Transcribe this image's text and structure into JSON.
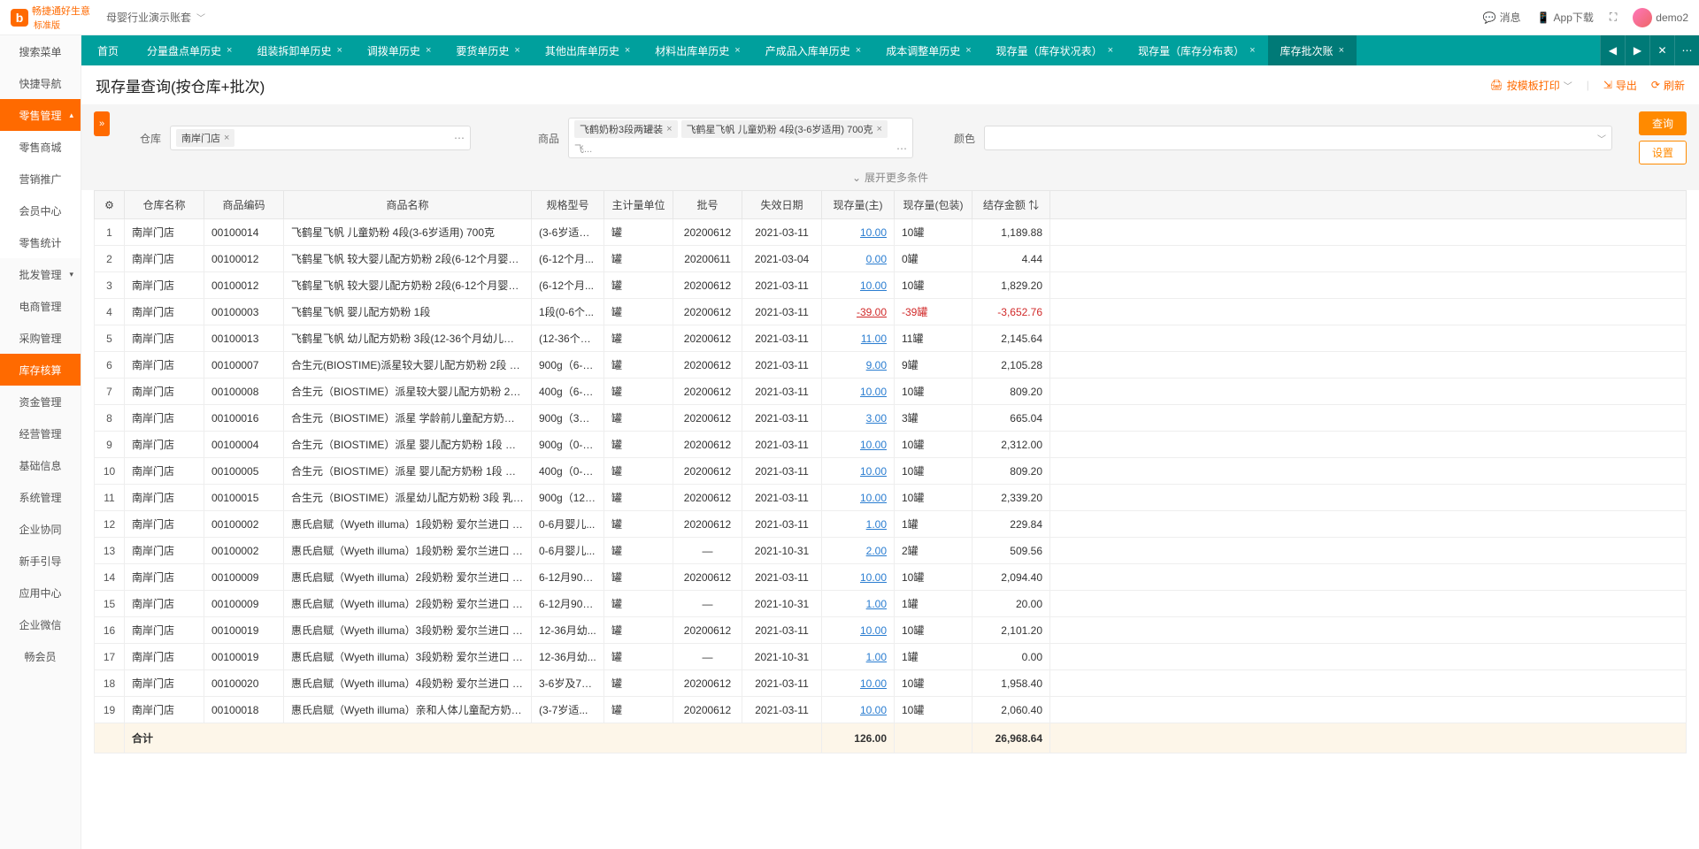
{
  "logo": {
    "brand": "畅捷通好生意",
    "edition": "标准版"
  },
  "account_selector": "母婴行业演示账套",
  "topbar": {
    "msg": "消息",
    "app": "App下载",
    "user": "demo2"
  },
  "sidebar": [
    {
      "label": "搜索菜单",
      "active": false
    },
    {
      "label": "快捷导航",
      "active": false
    },
    {
      "label": "零售管理",
      "active": true,
      "arrow": "▴"
    },
    {
      "label": "零售商城",
      "indent": true
    },
    {
      "label": "营销推广",
      "indent": true
    },
    {
      "label": "会员中心",
      "indent": true
    },
    {
      "label": "零售统计",
      "indent": true
    },
    {
      "label": "批发管理",
      "arrow": "▾"
    },
    {
      "label": "电商管理"
    },
    {
      "label": "采购管理"
    },
    {
      "label": "库存核算",
      "highlight": true
    },
    {
      "label": "资金管理"
    },
    {
      "label": "经营管理"
    },
    {
      "label": "基础信息"
    },
    {
      "label": "系统管理"
    },
    {
      "label": "企业协同"
    },
    {
      "label": "新手引导"
    },
    {
      "label": "应用中心"
    },
    {
      "label": "企业微信"
    },
    {
      "label": "畅会员"
    }
  ],
  "tabs": [
    {
      "label": "首页",
      "closable": false
    },
    {
      "label": "分量盘点单历史",
      "closable": true
    },
    {
      "label": "组装拆卸单历史",
      "closable": true
    },
    {
      "label": "调拨单历史",
      "closable": true
    },
    {
      "label": "要货单历史",
      "closable": true
    },
    {
      "label": "其他出库单历史",
      "closable": true
    },
    {
      "label": "材料出库单历史",
      "closable": true
    },
    {
      "label": "产成品入库单历史",
      "closable": true
    },
    {
      "label": "成本调整单历史",
      "closable": true
    },
    {
      "label": "现存量（库存状况表）",
      "closable": true
    },
    {
      "label": "现存量（库存分布表）",
      "closable": true
    },
    {
      "label": "库存批次账",
      "closable": true,
      "active": true
    }
  ],
  "page": {
    "title": "现存量查询(按仓库+批次)",
    "actions": {
      "print": "按模板打印",
      "export": "导出",
      "refresh": "刷新"
    }
  },
  "filters": {
    "warehouse_label": "仓库",
    "warehouse_chips": [
      "南岸门店"
    ],
    "goods_label": "商品",
    "goods_chips": [
      "飞鹤奶粉3段两罐装",
      "飞鹤星飞帆 儿童奶粉 4段(3-6岁适用) 700克"
    ],
    "goods_more": "飞...",
    "color_label": "颜色",
    "expand": "展开更多条件",
    "query": "查询",
    "settings": "设置"
  },
  "columns": [
    "⚙",
    "仓库名称",
    "商品编码",
    "商品名称",
    "规格型号",
    "主计量单位",
    "批号",
    "失效日期",
    "现存量(主)",
    "现存量(包装)",
    "结存金额 ⇅",
    ""
  ],
  "rows": [
    {
      "i": 1,
      "wh": "南岸门店",
      "code": "00100014",
      "name": "飞鹤星飞帆 儿童奶粉 4段(3-6岁适用) 700克",
      "spec": "(3-6岁适用)...",
      "unit": "罐",
      "batch": "20200612",
      "exp": "2021-03-11",
      "qty": "10.00",
      "pkg": "10罐",
      "amt": "1,189.88"
    },
    {
      "i": 2,
      "wh": "南岸门店",
      "code": "00100012",
      "name": "飞鹤星飞帆 较大婴儿配方奶粉 2段(6-12个月婴幼儿适用) ...",
      "spec": "(6-12个月...",
      "unit": "罐",
      "batch": "20200611",
      "exp": "2021-03-04",
      "qty": "0.00",
      "pkg": "0罐",
      "amt": "4.44"
    },
    {
      "i": 3,
      "wh": "南岸门店",
      "code": "00100012",
      "name": "飞鹤星飞帆 较大婴儿配方奶粉 2段(6-12个月婴幼儿适用) ...",
      "spec": "(6-12个月...",
      "unit": "罐",
      "batch": "20200612",
      "exp": "2021-03-11",
      "qty": "10.00",
      "pkg": "10罐",
      "amt": "1,829.20"
    },
    {
      "i": 4,
      "wh": "南岸门店",
      "code": "00100003",
      "name": "飞鹤星飞帆 婴儿配方奶粉 1段",
      "spec": "1段(0-6个...",
      "unit": "罐",
      "batch": "20200612",
      "exp": "2021-03-11",
      "qty": "-39.00",
      "pkg": "-39罐",
      "amt": "-3,652.76",
      "neg": true
    },
    {
      "i": 5,
      "wh": "南岸门店",
      "code": "00100013",
      "name": "飞鹤星飞帆 幼儿配方奶粉 3段(12-36个月幼儿适用) 700克",
      "spec": "(12-36个月...",
      "unit": "罐",
      "batch": "20200612",
      "exp": "2021-03-11",
      "qty": "11.00",
      "pkg": "11罐",
      "amt": "2,145.64"
    },
    {
      "i": 6,
      "wh": "南岸门店",
      "code": "00100007",
      "name": "合生元(BIOSTIME)派星较大婴儿配方奶粉 2段 乳铁蛋白的...",
      "spec": "900g（6-1...",
      "unit": "罐",
      "batch": "20200612",
      "exp": "2021-03-11",
      "qty": "9.00",
      "pkg": "9罐",
      "amt": "2,105.28"
    },
    {
      "i": 7,
      "wh": "南岸门店",
      "code": "00100008",
      "name": "合生元（BIOSTIME）派星较大婴儿配方奶粉 2段 乳铁蛋...",
      "spec": "400g（6-1...",
      "unit": "罐",
      "batch": "20200612",
      "exp": "2021-03-11",
      "qty": "10.00",
      "pkg": "10罐",
      "amt": "809.20"
    },
    {
      "i": 8,
      "wh": "南岸门店",
      "code": "00100016",
      "name": "合生元（BIOSTIME）派星 学龄前儿童配方奶粉 4段",
      "spec": "900g（3岁...",
      "unit": "罐",
      "batch": "20200612",
      "exp": "2021-03-11",
      "qty": "3.00",
      "pkg": "3罐",
      "amt": "665.04"
    },
    {
      "i": 9,
      "wh": "南岸门店",
      "code": "00100004",
      "name": "合生元（BIOSTIME）派星 婴儿配方奶粉 1段 乳铁蛋白的...",
      "spec": "900g（0-6...",
      "unit": "罐",
      "batch": "20200612",
      "exp": "2021-03-11",
      "qty": "10.00",
      "pkg": "10罐",
      "amt": "2,312.00"
    },
    {
      "i": 10,
      "wh": "南岸门店",
      "code": "00100005",
      "name": "合生元（BIOSTIME）派星 婴儿配方奶粉 1段 乳铁蛋白的...",
      "spec": "400g（0-6...",
      "unit": "罐",
      "batch": "20200612",
      "exp": "2021-03-11",
      "qty": "10.00",
      "pkg": "10罐",
      "amt": "809.20"
    },
    {
      "i": 11,
      "wh": "南岸门店",
      "code": "00100015",
      "name": "合生元（BIOSTIME）派星幼儿配方奶粉 3段 乳铁蛋白的4...",
      "spec": "900g（12-...",
      "unit": "罐",
      "batch": "20200612",
      "exp": "2021-03-11",
      "qty": "10.00",
      "pkg": "10罐",
      "amt": "2,339.20"
    },
    {
      "i": 12,
      "wh": "南岸门店",
      "code": "00100002",
      "name": "惠氏启赋（Wyeth illuma）1段奶粉 爱尔兰进口 0-6月婴儿...",
      "spec": "0-6月婴儿...",
      "unit": "罐",
      "batch": "20200612",
      "exp": "2021-03-11",
      "qty": "1.00",
      "pkg": "1罐",
      "amt": "229.84"
    },
    {
      "i": 13,
      "wh": "南岸门店",
      "code": "00100002",
      "name": "惠氏启赋（Wyeth illuma）1段奶粉 爱尔兰进口 0-6月婴儿...",
      "spec": "0-6月婴儿...",
      "unit": "罐",
      "batch": "—",
      "exp": "2021-10-31",
      "qty": "2.00",
      "pkg": "2罐",
      "amt": "509.56"
    },
    {
      "i": 14,
      "wh": "南岸门店",
      "code": "00100009",
      "name": "惠氏启赋（Wyeth illuma）2段奶粉 爱尔兰进口 6-12月较...",
      "spec": "6-12月900...",
      "unit": "罐",
      "batch": "20200612",
      "exp": "2021-03-11",
      "qty": "10.00",
      "pkg": "10罐",
      "amt": "2,094.40"
    },
    {
      "i": 15,
      "wh": "南岸门店",
      "code": "00100009",
      "name": "惠氏启赋（Wyeth illuma）2段奶粉 爱尔兰进口 6-12月较...",
      "spec": "6-12月900...",
      "unit": "罐",
      "batch": "—",
      "exp": "2021-10-31",
      "qty": "1.00",
      "pkg": "1罐",
      "amt": "20.00"
    },
    {
      "i": 16,
      "wh": "南岸门店",
      "code": "00100019",
      "name": "惠氏启赋（Wyeth illuma）3段奶粉 爱尔兰进口 12-36月...",
      "spec": "12-36月幼...",
      "unit": "罐",
      "batch": "20200612",
      "exp": "2021-03-11",
      "qty": "10.00",
      "pkg": "10罐",
      "amt": "2,101.20"
    },
    {
      "i": 17,
      "wh": "南岸门店",
      "code": "00100019",
      "name": "惠氏启赋（Wyeth illuma）3段奶粉 爱尔兰进口 12-36月...",
      "spec": "12-36月幼...",
      "unit": "罐",
      "batch": "—",
      "exp": "2021-10-31",
      "qty": "1.00",
      "pkg": "1罐",
      "amt": "0.00"
    },
    {
      "i": 18,
      "wh": "南岸门店",
      "code": "00100020",
      "name": "惠氏启赋（Wyeth illuma）4段奶粉 爱尔兰进口 3-6岁及7...",
      "spec": "3-6岁及7岁...",
      "unit": "罐",
      "batch": "20200612",
      "exp": "2021-03-11",
      "qty": "10.00",
      "pkg": "10罐",
      "amt": "1,958.40"
    },
    {
      "i": 19,
      "wh": "南岸门店",
      "code": "00100018",
      "name": "惠氏启赋（Wyeth illuma）亲和人体儿童配方奶粉4段（3...",
      "spec": "(3-7岁适...",
      "unit": "罐",
      "batch": "20200612",
      "exp": "2021-03-11",
      "qty": "10.00",
      "pkg": "10罐",
      "amt": "2,060.40"
    }
  ],
  "footer": {
    "label": "合计",
    "qty": "126.00",
    "amt": "26,968.64"
  }
}
